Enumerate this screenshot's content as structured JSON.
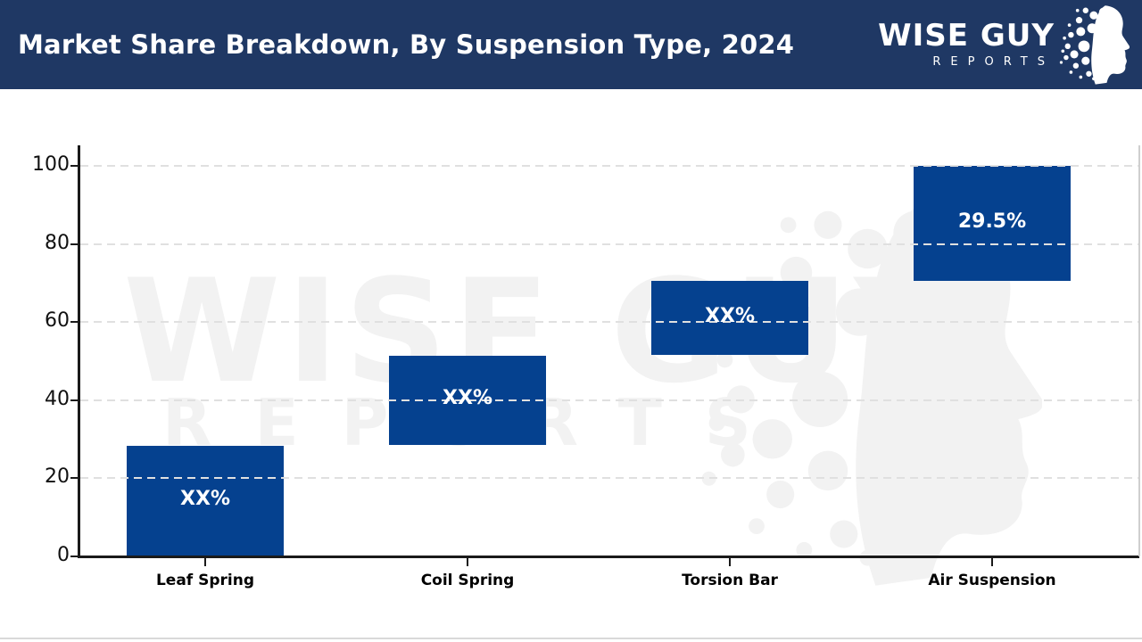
{
  "header": {
    "title": "Market Share Breakdown, By Suspension Type, 2024",
    "logo": {
      "line1": "WISE GUY",
      "line2": "REPORTS"
    }
  },
  "watermark": {
    "line1": "WISE GUY",
    "line2": "REPORTS"
  },
  "chart_data": {
    "type": "bar",
    "subtype": "waterfall",
    "title": "Market Share Breakdown, By Suspension Type, 2024",
    "categories": [
      "Leaf Spring",
      "Coil Spring",
      "Torsion Bar",
      "Air Suspension"
    ],
    "bars": [
      {
        "category": "Leaf Spring",
        "start": 0,
        "end": 28.4,
        "label": "XX%"
      },
      {
        "category": "Coil Spring",
        "start": 28.6,
        "end": 51.4,
        "label": "XX%"
      },
      {
        "category": "Torsion Bar",
        "start": 51.6,
        "end": 70.5,
        "label": "XX%"
      },
      {
        "category": "Air Suspension",
        "start": 70.5,
        "end": 100,
        "label": "29.5%"
      }
    ],
    "xlabel": "",
    "ylabel": "",
    "ylim": [
      0,
      105
    ],
    "yticks": [
      0,
      20,
      40,
      60,
      80,
      100
    ],
    "grid": "horizontal-dashed",
    "legend": null,
    "colors": {
      "bar": "#05418f",
      "bar_label": "#ffffff",
      "grid": "#e0e0e0",
      "axis": "#1a1a1a",
      "header_bg": "#1f3864",
      "watermark": "#f2f2f2"
    }
  }
}
